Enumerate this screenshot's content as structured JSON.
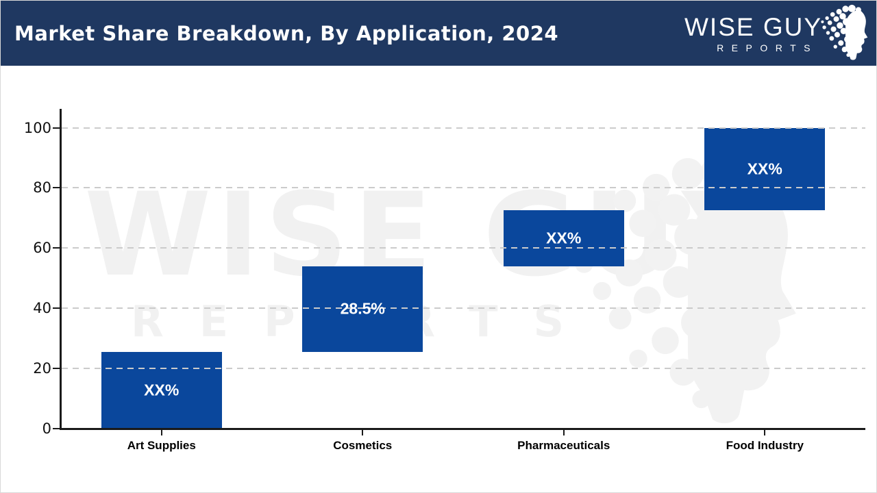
{
  "header": {
    "title": "Market Share Breakdown, By Application, 2024",
    "logo": {
      "line1": "WISE GUY",
      "line2": "REPORTS"
    }
  },
  "watermark": {
    "line1": "WISE GUY",
    "line2": "REPORTS"
  },
  "colors": {
    "header_bg": "#1f3861",
    "bar": "#0a479c",
    "axis": "#1a1a1a",
    "grid": "#cbcbcb",
    "bar_label_text": "#ffffff",
    "watermark": "#f1f1f1",
    "page_border": "#d9d9d9"
  },
  "chart_data": {
    "type": "bar",
    "variant": "floating-waterfall",
    "title": "Market Share Breakdown, By Application, 2024",
    "categories": [
      "Art Supplies",
      "Cosmetics",
      "Pharmaceuticals",
      "Food Industry"
    ],
    "bars": [
      {
        "category": "Art Supplies",
        "start": 0,
        "end": 25.5,
        "value_label": "XX%"
      },
      {
        "category": "Cosmetics",
        "start": 25.5,
        "end": 54,
        "value_label": "28.5%"
      },
      {
        "category": "Pharmaceuticals",
        "start": 54,
        "end": 72.5,
        "value_label": "XX%"
      },
      {
        "category": "Food Industry",
        "start": 72.5,
        "end": 100,
        "value_label": "XX%"
      }
    ],
    "xlabel": "",
    "ylabel": "",
    "ylim": [
      0,
      100
    ],
    "yticks": [
      0,
      20,
      40,
      60,
      80,
      100
    ],
    "grid": "horizontal-dashed",
    "grid_above_bars": true,
    "legend": "none",
    "bar_color": "#0a479c"
  }
}
